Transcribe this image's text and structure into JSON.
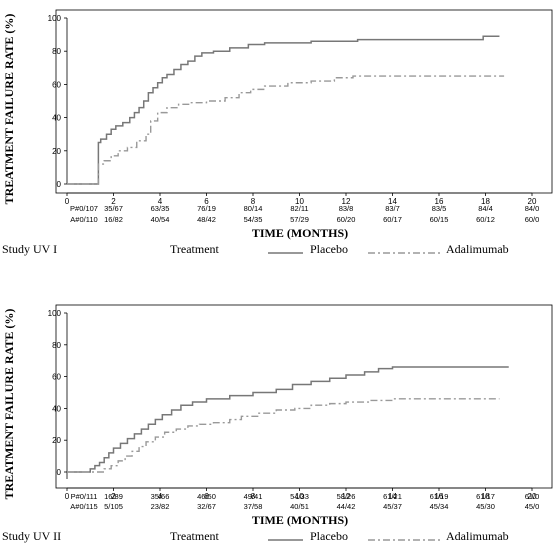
{
  "chart_data": [
    {
      "type": "line",
      "ylabel": "TREATMENT FAILURE RATE (%)",
      "xlabel": "TIME (MONTHS)",
      "xlim": [
        0,
        20
      ],
      "ylim": [
        0,
        100
      ],
      "x_ticks": [
        0,
        2,
        4,
        6,
        8,
        10,
        12,
        14,
        16,
        18,
        20
      ],
      "y_ticks": [
        0,
        20,
        40,
        60,
        80,
        100
      ],
      "grid": false,
      "at_risk_labels": [
        "P#0/107",
        "A#0/110"
      ],
      "at_risk_placebo": [
        "35/67",
        "63/35",
        "76/19",
        "80/14",
        "82/11",
        "83/8",
        "83/7",
        "83/5",
        "84/4",
        "84/0"
      ],
      "at_risk_adalimumab": [
        "16/82",
        "40/54",
        "48/42",
        "54/35",
        "57/29",
        "60/20",
        "60/17",
        "60/15",
        "60/12",
        "60/0"
      ],
      "legend": {
        "study": "Study UV I",
        "treatment_label": "Treatment",
        "placebo": "Placebo",
        "adalimumab": "Adalimumab"
      },
      "series": [
        {
          "name": "Placebo",
          "style": "solid",
          "points": [
            [
              0,
              0
            ],
            [
              1.35,
              0
            ],
            [
              1.35,
              25
            ],
            [
              1.45,
              27
            ],
            [
              1.7,
              30
            ],
            [
              1.9,
              33
            ],
            [
              2.1,
              35
            ],
            [
              2.4,
              37
            ],
            [
              2.7,
              40
            ],
            [
              2.9,
              43
            ],
            [
              3.1,
              46
            ],
            [
              3.3,
              50
            ],
            [
              3.5,
              55
            ],
            [
              3.7,
              58
            ],
            [
              3.9,
              61
            ],
            [
              4.1,
              64
            ],
            [
              4.3,
              66
            ],
            [
              4.6,
              69
            ],
            [
              4.9,
              72
            ],
            [
              5.2,
              74
            ],
            [
              5.5,
              77
            ],
            [
              5.8,
              79
            ],
            [
              6.3,
              80
            ],
            [
              7.0,
              82
            ],
            [
              7.8,
              84
            ],
            [
              8.5,
              85
            ],
            [
              10.5,
              86
            ],
            [
              12.5,
              87
            ],
            [
              16.5,
              87
            ],
            [
              17.9,
              87
            ],
            [
              17.9,
              89
            ],
            [
              18.6,
              89
            ]
          ]
        },
        {
          "name": "Adalimumab",
          "style": "dash-dot",
          "points": [
            [
              0,
              0
            ],
            [
              1.35,
              0
            ],
            [
              1.35,
              12
            ],
            [
              1.6,
              14
            ],
            [
              1.9,
              17
            ],
            [
              2.2,
              20
            ],
            [
              2.6,
              22
            ],
            [
              3.0,
              26
            ],
            [
              3.4,
              30
            ],
            [
              3.6,
              38
            ],
            [
              3.9,
              43
            ],
            [
              4.3,
              46
            ],
            [
              4.8,
              48
            ],
            [
              5.3,
              49
            ],
            [
              6.0,
              50
            ],
            [
              6.8,
              52
            ],
            [
              7.4,
              55
            ],
            [
              7.9,
              57
            ],
            [
              8.5,
              59
            ],
            [
              9.5,
              61
            ],
            [
              10.5,
              62
            ],
            [
              11.5,
              64
            ],
            [
              12.3,
              65
            ],
            [
              14.5,
              65
            ],
            [
              16.5,
              65
            ],
            [
              18.8,
              65
            ]
          ]
        }
      ]
    },
    {
      "type": "line",
      "ylabel": "TREATMENT FAILURE RATE (%)",
      "xlabel": "TIME (MONTHS)",
      "xlim": [
        0,
        20
      ],
      "ylim": [
        0,
        100
      ],
      "x_ticks": [
        0,
        2,
        4,
        6,
        8,
        10,
        12,
        14,
        16,
        18,
        20
      ],
      "y_ticks": [
        0,
        20,
        40,
        60,
        80,
        100
      ],
      "grid": false,
      "at_risk_labels": [
        "P#0/111",
        "A#0/115"
      ],
      "at_risk_placebo": [
        "16/89",
        "35/66",
        "46/50",
        "49/41",
        "54/33",
        "58/26",
        "61/21",
        "61/19",
        "61/17",
        "61/0"
      ],
      "at_risk_adalimumab": [
        "5/105",
        "23/82",
        "32/67",
        "37/58",
        "40/51",
        "44/42",
        "45/37",
        "45/34",
        "45/30",
        "45/0"
      ],
      "legend": {
        "study": "Study UV II",
        "treatment_label": "Treatment",
        "placebo": "Placebo",
        "adalimumab": "Adalimumab"
      },
      "series": [
        {
          "name": "Placebo",
          "style": "solid",
          "points": [
            [
              0,
              0
            ],
            [
              0.9,
              0
            ],
            [
              1.0,
              2
            ],
            [
              1.2,
              4
            ],
            [
              1.4,
              6
            ],
            [
              1.6,
              9
            ],
            [
              1.8,
              12
            ],
            [
              2.0,
              15
            ],
            [
              2.3,
              18
            ],
            [
              2.6,
              21
            ],
            [
              2.9,
              24
            ],
            [
              3.2,
              27
            ],
            [
              3.5,
              30
            ],
            [
              3.8,
              33
            ],
            [
              4.1,
              36
            ],
            [
              4.5,
              39
            ],
            [
              4.9,
              42
            ],
            [
              5.4,
              44
            ],
            [
              6.0,
              46
            ],
            [
              7.0,
              48
            ],
            [
              8.0,
              50
            ],
            [
              9.0,
              52
            ],
            [
              9.7,
              55
            ],
            [
              10.5,
              57
            ],
            [
              11.3,
              59
            ],
            [
              12.0,
              61
            ],
            [
              12.8,
              63
            ],
            [
              13.4,
              65
            ],
            [
              14.0,
              66
            ],
            [
              16.0,
              66
            ],
            [
              19.0,
              66
            ]
          ]
        },
        {
          "name": "Adalimumab",
          "style": "dash-dot",
          "points": [
            [
              0,
              0
            ],
            [
              1.4,
              0
            ],
            [
              1.6,
              2
            ],
            [
              1.9,
              4
            ],
            [
              2.2,
              7
            ],
            [
              2.5,
              10
            ],
            [
              2.8,
              13
            ],
            [
              3.1,
              16
            ],
            [
              3.4,
              19
            ],
            [
              3.8,
              22
            ],
            [
              4.2,
              25
            ],
            [
              4.7,
              27
            ],
            [
              5.2,
              29
            ],
            [
              5.7,
              30
            ],
            [
              6.3,
              31
            ],
            [
              7.0,
              33
            ],
            [
              7.5,
              35
            ],
            [
              8.2,
              37
            ],
            [
              9.0,
              39
            ],
            [
              9.8,
              40
            ],
            [
              10.5,
              42
            ],
            [
              11.3,
              43
            ],
            [
              12.0,
              44
            ],
            [
              13.0,
              45
            ],
            [
              14.0,
              46
            ],
            [
              16.0,
              46
            ],
            [
              18.6,
              46
            ]
          ]
        }
      ]
    }
  ]
}
